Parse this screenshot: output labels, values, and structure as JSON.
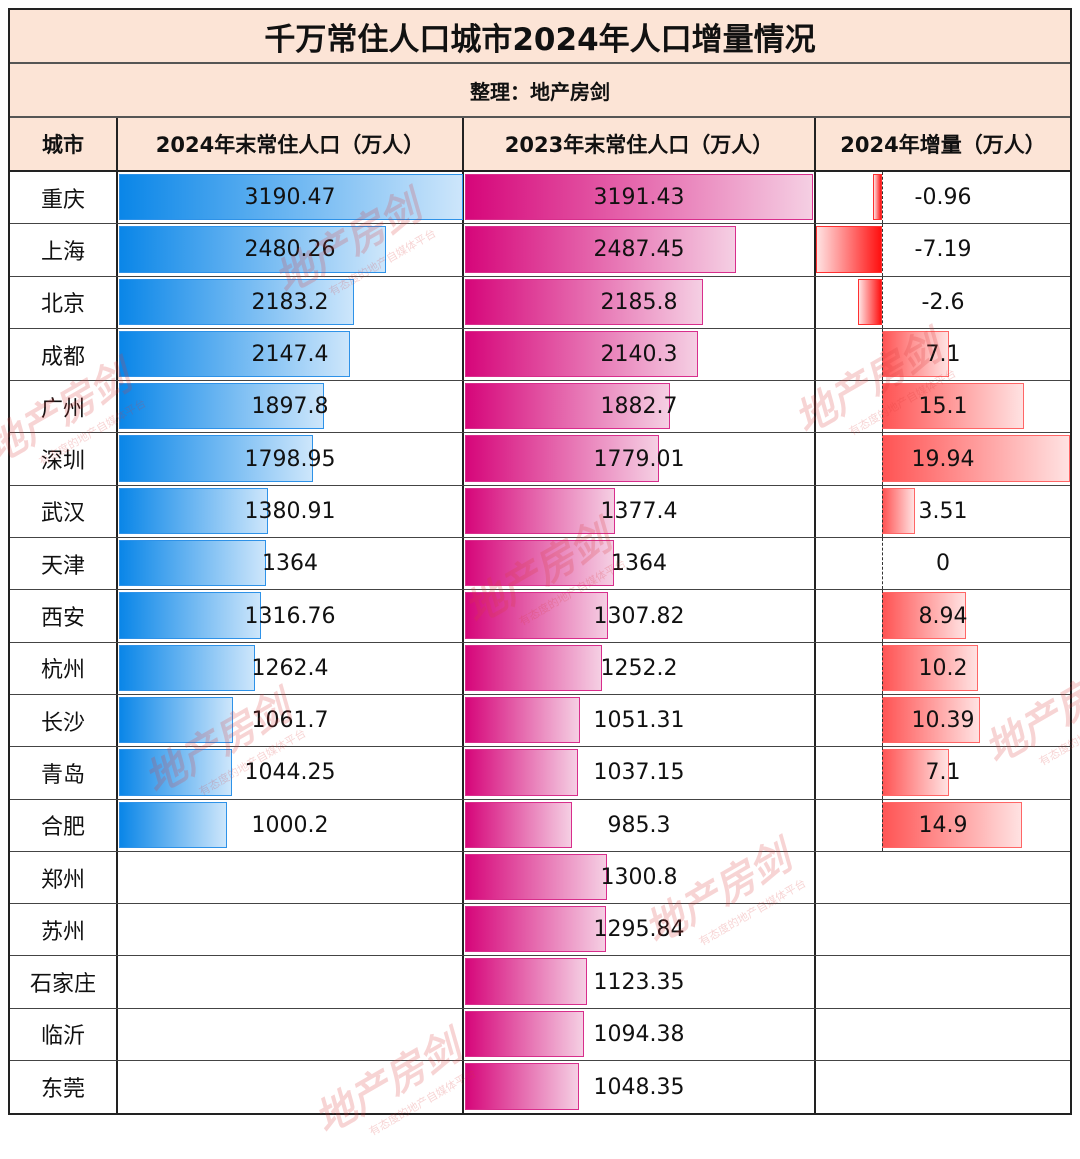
{
  "header": {
    "title": "千万常住人口城市2024年人口增量情况",
    "subtitle": "整理：地产房剑"
  },
  "columns": [
    "城市",
    "2024年末常住人口（万人）",
    "2023年末常住人口（万人）",
    "2024年增量（万人）"
  ],
  "rows": [
    {
      "city": "重庆",
      "pop2024": "3190.47",
      "pop2023": "3191.43",
      "delta": "-0.96"
    },
    {
      "city": "上海",
      "pop2024": "2480.26",
      "pop2023": "2487.45",
      "delta": "-7.19"
    },
    {
      "city": "北京",
      "pop2024": "2183.2",
      "pop2023": "2185.8",
      "delta": "-2.6"
    },
    {
      "city": "成都",
      "pop2024": "2147.4",
      "pop2023": "2140.3",
      "delta": "7.1"
    },
    {
      "city": "广州",
      "pop2024": "1897.8",
      "pop2023": "1882.7",
      "delta": "15.1"
    },
    {
      "city": "深圳",
      "pop2024": "1798.95",
      "pop2023": "1779.01",
      "delta": "19.94"
    },
    {
      "city": "武汉",
      "pop2024": "1380.91",
      "pop2023": "1377.4",
      "delta": "3.51"
    },
    {
      "city": "天津",
      "pop2024": "1364",
      "pop2023": "1364",
      "delta": "0"
    },
    {
      "city": "西安",
      "pop2024": "1316.76",
      "pop2023": "1307.82",
      "delta": "8.94"
    },
    {
      "city": "杭州",
      "pop2024": "1262.4",
      "pop2023": "1252.2",
      "delta": "10.2"
    },
    {
      "city": "长沙",
      "pop2024": "1061.7",
      "pop2023": "1051.31",
      "delta": "10.39"
    },
    {
      "city": "青岛",
      "pop2024": "1044.25",
      "pop2023": "1037.15",
      "delta": "7.1"
    },
    {
      "city": "合肥",
      "pop2024": "1000.2",
      "pop2023": "985.3",
      "delta": "14.9"
    },
    {
      "city": "郑州",
      "pop2024": "",
      "pop2023": "1300.8",
      "delta": ""
    },
    {
      "city": "苏州",
      "pop2024": "",
      "pop2023": "1295.84",
      "delta": ""
    },
    {
      "city": "石家庄",
      "pop2024": "",
      "pop2023": "1123.35",
      "delta": ""
    },
    {
      "city": "临沂",
      "pop2024": "",
      "pop2023": "1094.38",
      "delta": ""
    },
    {
      "city": "东莞",
      "pop2024": "",
      "pop2023": "1048.35",
      "delta": ""
    }
  ],
  "watermark": {
    "text": "地产房剑",
    "tagline": "有态度的地产自媒体平台"
  },
  "colors": {
    "header_bg": "#fce4d6",
    "bar_2024": "#0a86e8",
    "bar_2023": "#d6067a",
    "bar_delta_pos": "#ff5454",
    "bar_delta_neg": "#ff1010"
  },
  "chart_data": {
    "type": "table",
    "title": "千万常住人口城市2024年人口增量情况",
    "subtitle": "整理：地产房剑",
    "categories": [
      "重庆",
      "上海",
      "北京",
      "成都",
      "广州",
      "深圳",
      "武汉",
      "天津",
      "西安",
      "杭州",
      "长沙",
      "青岛",
      "合肥",
      "郑州",
      "苏州",
      "石家庄",
      "临沂",
      "东莞"
    ],
    "series": [
      {
        "name": "2024年末常住人口（万人）",
        "values": [
          3190.47,
          2480.26,
          2183.2,
          2147.4,
          1897.8,
          1798.95,
          1380.91,
          1364,
          1316.76,
          1262.4,
          1061.7,
          1044.25,
          1000.2,
          null,
          null,
          null,
          null,
          null
        ]
      },
      {
        "name": "2023年末常住人口（万人）",
        "values": [
          3191.43,
          2487.45,
          2185.8,
          2140.3,
          1882.7,
          1779.01,
          1377.4,
          1364,
          1307.82,
          1252.2,
          1051.31,
          1037.15,
          985.3,
          1300.8,
          1295.84,
          1123.35,
          1094.38,
          1048.35
        ]
      },
      {
        "name": "2024年增量（万人）",
        "values": [
          -0.96,
          -7.19,
          -2.6,
          7.1,
          15.1,
          19.94,
          3.51,
          0,
          8.94,
          10.2,
          10.39,
          7.1,
          14.9,
          null,
          null,
          null,
          null,
          null
        ]
      }
    ],
    "layout": {
      "in_cell_data_bars": true,
      "grid": true,
      "legend": "none"
    }
  }
}
